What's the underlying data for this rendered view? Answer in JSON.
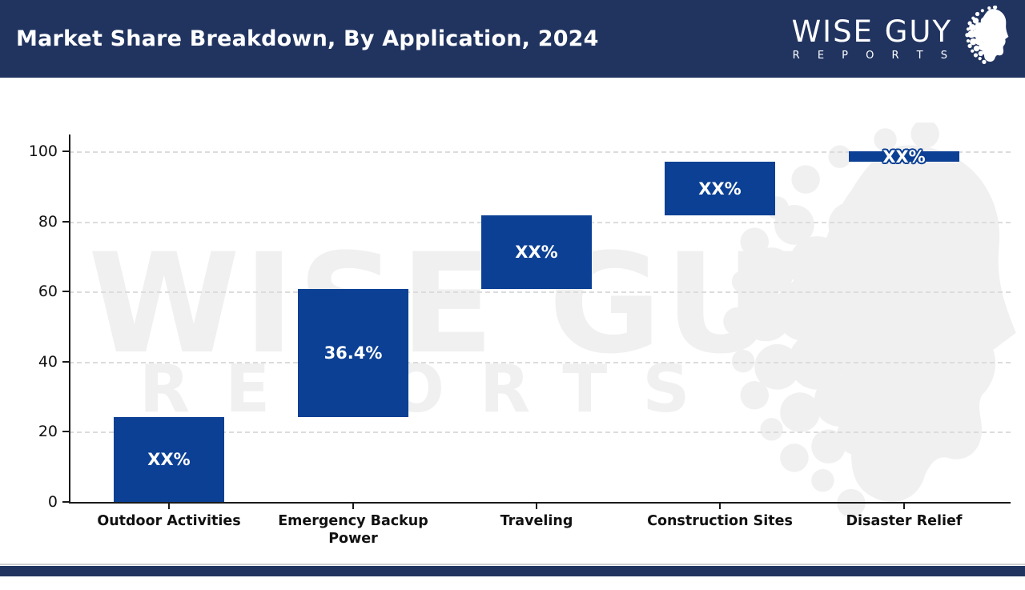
{
  "header": {
    "title": "Market Share Breakdown, By Application, 2024",
    "logo": {
      "line1": "WISE GUY",
      "line2": "R E P O R T S"
    }
  },
  "watermark": {
    "line1": "WISE GUY",
    "line2": "REPORTS"
  },
  "chart_data": {
    "type": "bar",
    "subtype": "waterfall",
    "title": "Market Share Breakdown, By Application, 2024",
    "categories": [
      "Outdoor Activities",
      "Emergency Backup Power",
      "Traveling",
      "Construction Sites",
      "Disaster Relief"
    ],
    "values": [
      24.3,
      36.4,
      21.0,
      15.3,
      3.0
    ],
    "cumulative_start": [
      0,
      24.3,
      60.7,
      81.7,
      97.0
    ],
    "bar_labels": [
      "XX%",
      "36.4%",
      "XX%",
      "XX%",
      "XX%"
    ],
    "ylim": [
      0,
      100
    ],
    "yticks": [
      0,
      20,
      40,
      60,
      80,
      100
    ],
    "grid": "horizontal-dashed",
    "legend": "none",
    "bar_color": "#0b4094",
    "bar_label_color": "#ffffff",
    "accent_navy": "#213460"
  }
}
